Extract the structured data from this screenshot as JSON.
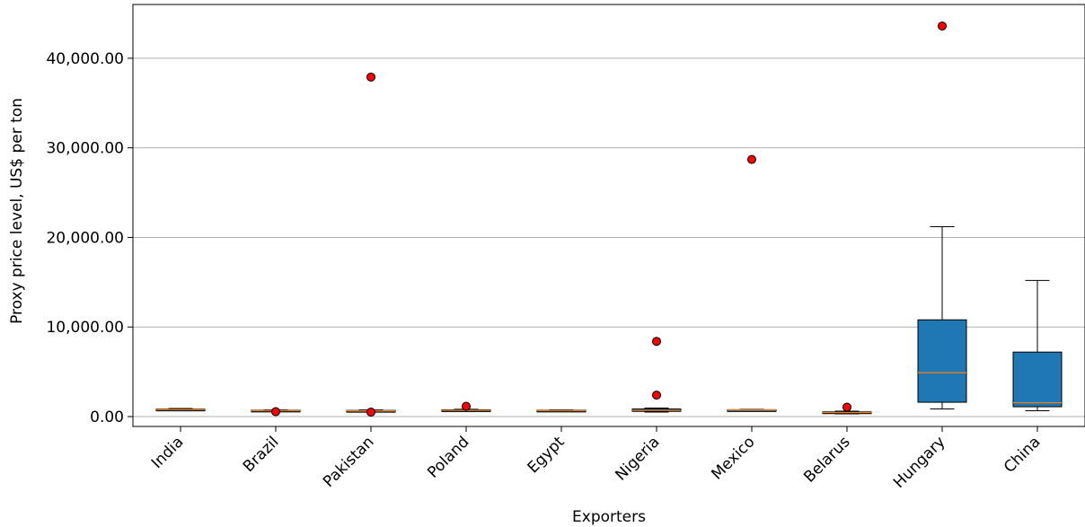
{
  "chart_data": {
    "type": "box",
    "xlabel": "Exporters",
    "ylabel": "Proxy price level, US$ per ton",
    "ylim": [
      -1100,
      46000
    ],
    "yticks": [
      0,
      10000,
      20000,
      30000,
      40000
    ],
    "ytick_labels": [
      "0.00",
      "10,000.00",
      "20,000.00",
      "30,000.00",
      "40,000.00"
    ],
    "grid": "y",
    "colors": {
      "box_fill": "#1f77b4",
      "median": "#ff7f0e",
      "outlier": "#ff0000",
      "grid": "#b0b0b0"
    },
    "categories": [
      "India",
      "Brazil",
      "Pakistan",
      "Poland",
      "Egypt",
      "Nigeria",
      "Mexico",
      "Belarus",
      "Hungary",
      "China"
    ],
    "boxes": [
      {
        "name": "India",
        "whisker_low": 700,
        "q1": 720,
        "median": 780,
        "q3": 840,
        "whisker_high": 900,
        "outliers": []
      },
      {
        "name": "Brazil",
        "whisker_low": 620,
        "q1": 650,
        "median": 680,
        "q3": 720,
        "whisker_high": 760,
        "outliers": [
          550
        ]
      },
      {
        "name": "Pakistan",
        "whisker_low": 560,
        "q1": 600,
        "median": 640,
        "q3": 690,
        "whisker_high": 740,
        "outliers": [
          37900,
          500
        ]
      },
      {
        "name": "Poland",
        "whisker_low": 620,
        "q1": 660,
        "median": 700,
        "q3": 760,
        "whisker_high": 820,
        "outliers": [
          1150
        ]
      },
      {
        "name": "Egypt",
        "whisker_low": 600,
        "q1": 640,
        "median": 680,
        "q3": 720,
        "whisker_high": 760,
        "outliers": []
      },
      {
        "name": "Nigeria",
        "whisker_low": 500,
        "q1": 580,
        "median": 700,
        "q3": 850,
        "whisker_high": 950,
        "outliers": [
          8400,
          2400
        ]
      },
      {
        "name": "Mexico",
        "whisker_low": 700,
        "q1": 720,
        "median": 740,
        "q3": 770,
        "whisker_high": 800,
        "outliers": [
          28700
        ]
      },
      {
        "name": "Belarus",
        "whisker_low": 300,
        "q1": 380,
        "median": 450,
        "q3": 530,
        "whisker_high": 600,
        "outliers": [
          1050
        ]
      },
      {
        "name": "Hungary",
        "whisker_low": 850,
        "q1": 1600,
        "median": 4900,
        "q3": 10800,
        "whisker_high": 21200,
        "outliers": [
          43600
        ]
      },
      {
        "name": "China",
        "whisker_low": 650,
        "q1": 1100,
        "median": 1550,
        "q3": 7200,
        "whisker_high": 15200,
        "outliers": []
      }
    ]
  }
}
